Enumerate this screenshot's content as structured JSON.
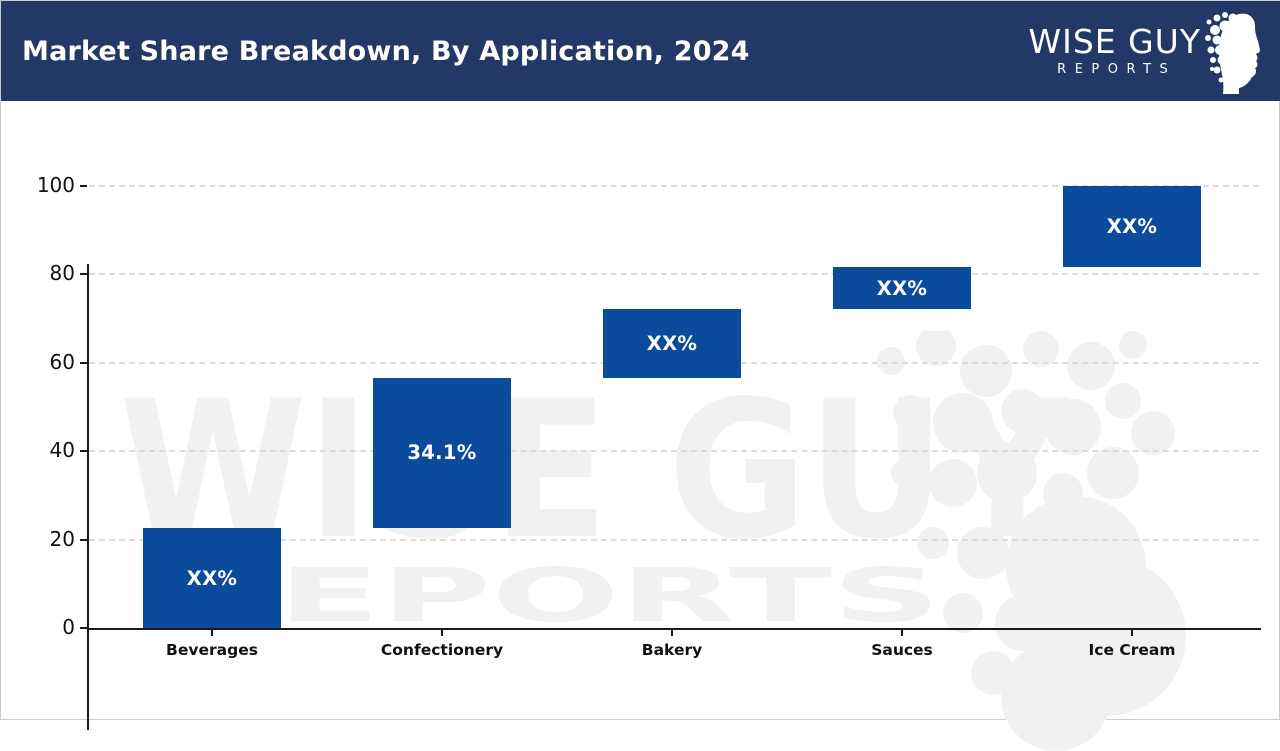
{
  "header": {
    "title": "Market Share Breakdown, By Application, 2024",
    "logo": {
      "name": "WISE GUY",
      "tagline": "REPORTS"
    }
  },
  "watermark": {
    "name": "WISE GUY",
    "tagline": "REPORTS"
  },
  "chart_data": {
    "type": "bar",
    "subtype": "waterfall",
    "title": "Market Share Breakdown, By Application, 2024",
    "xlabel": "",
    "ylabel": "",
    "categories": [
      "Beverages",
      "Confectionery",
      "Bakery",
      "Sauces",
      "Ice Cream"
    ],
    "segments": [
      {
        "category": "Beverages",
        "start": 0,
        "end": 22.5,
        "label": "XX%"
      },
      {
        "category": "Confectionery",
        "start": 22.5,
        "end": 56.6,
        "label": "34.1%"
      },
      {
        "category": "Bakery",
        "start": 56.6,
        "end": 72.1,
        "label": "XX%"
      },
      {
        "category": "Sauces",
        "start": 72.1,
        "end": 81.5,
        "label": "XX%"
      },
      {
        "category": "Ice Cream",
        "start": 81.5,
        "end": 100,
        "label": "XX%"
      }
    ],
    "yticks": [
      0,
      20,
      40,
      60,
      80,
      100
    ],
    "ylim": [
      0,
      104.5
    ],
    "grid": "horizontal-dashed",
    "legend": "none"
  },
  "colors": {
    "header_bg": "#223866",
    "header_text": "#ffffff",
    "bar": "#0c4a9c",
    "bar_label": "#ffffff",
    "grid": "#dcdcdc",
    "axis": "#1a1a1a",
    "tick_text": "#111111",
    "watermark": "#f1f1f1",
    "figure_border": "#cccccc"
  }
}
